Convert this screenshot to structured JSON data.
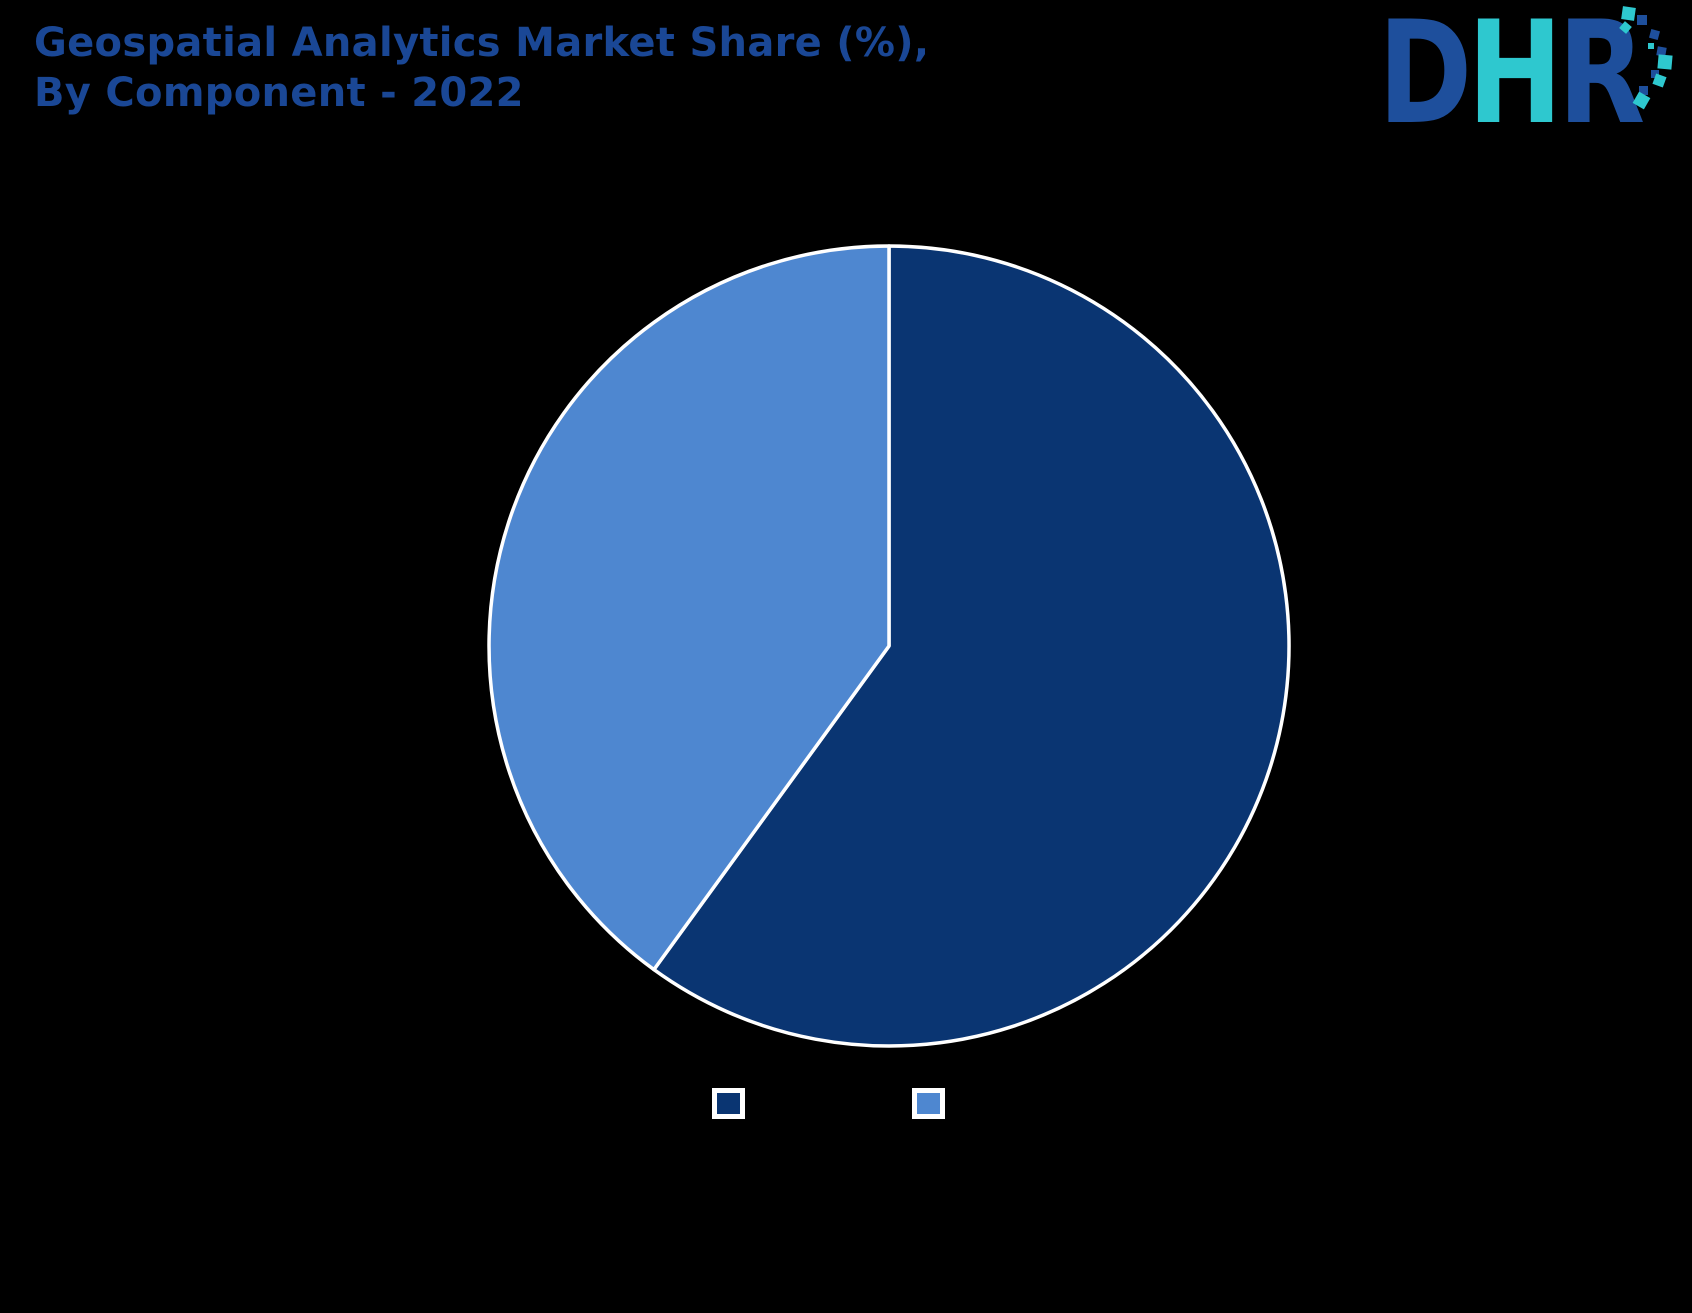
{
  "page": {
    "background_color": "#000000"
  },
  "header": {
    "title_line1": "Geospatial Analytics Market Share (%),",
    "title_line2": "By Component - 2022",
    "title_color": "#1a4795"
  },
  "logo": {
    "letters": [
      {
        "char": "D",
        "color": "#1e4f9c"
      },
      {
        "char": "H",
        "color": "#2ec8cf"
      },
      {
        "char": "R",
        "color": "#1e4f9c"
      }
    ],
    "dot_colors": {
      "teal": "#2ec8cf",
      "blue": "#1e4f9c"
    }
  },
  "chart_data": {
    "type": "pie",
    "title": "Geospatial Analytics Market Share (%), By Component - 2022",
    "slices": [
      {
        "label": "",
        "value": 60,
        "color": "#0a3572"
      },
      {
        "label": "",
        "value": 40,
        "color": "#4e87d0"
      }
    ],
    "start_angle_deg": 0,
    "direction": "clockwise",
    "stroke_color": "#ffffff",
    "stroke_width": 3.5,
    "legend_position": "bottom",
    "legend_labels_visible": false
  }
}
